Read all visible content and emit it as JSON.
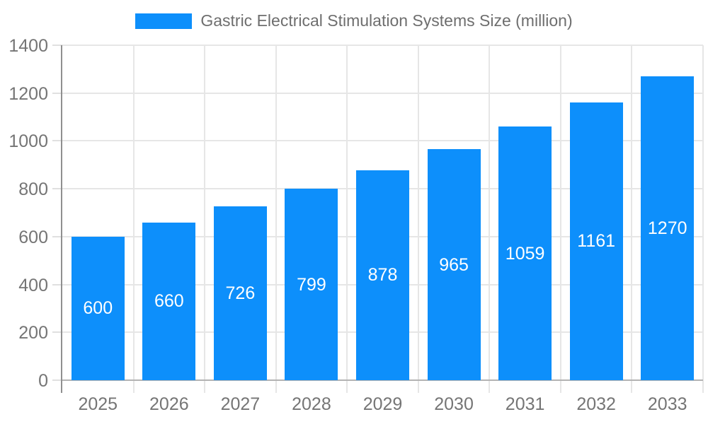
{
  "chart_data": {
    "type": "bar",
    "title": "Gastric Electrical Stimulation Systems Size (million)",
    "categories": [
      "2025",
      "2026",
      "2027",
      "2028",
      "2029",
      "2030",
      "2031",
      "2032",
      "2033"
    ],
    "values": [
      600,
      660,
      726,
      799,
      878,
      965,
      1059,
      1161,
      1270
    ],
    "xlabel": "",
    "ylabel": "",
    "ylim": [
      0,
      1400
    ],
    "yticks": [
      0,
      200,
      400,
      600,
      800,
      1000,
      1200,
      1400
    ],
    "grid": true,
    "legend_position": "top",
    "value_labels": "inside-center"
  },
  "legend": {
    "label": "Gastric Electrical Stimulation Systems Size (million)"
  },
  "colors": {
    "bar": "#0d8ffb",
    "bar_label": "#ffffff",
    "axis_line": "#8f8f8f",
    "baseline": "#b3b3b3",
    "gridline": "#e6e6e6",
    "axis_text": "#757575",
    "legend_text": "#6e6e6e"
  }
}
